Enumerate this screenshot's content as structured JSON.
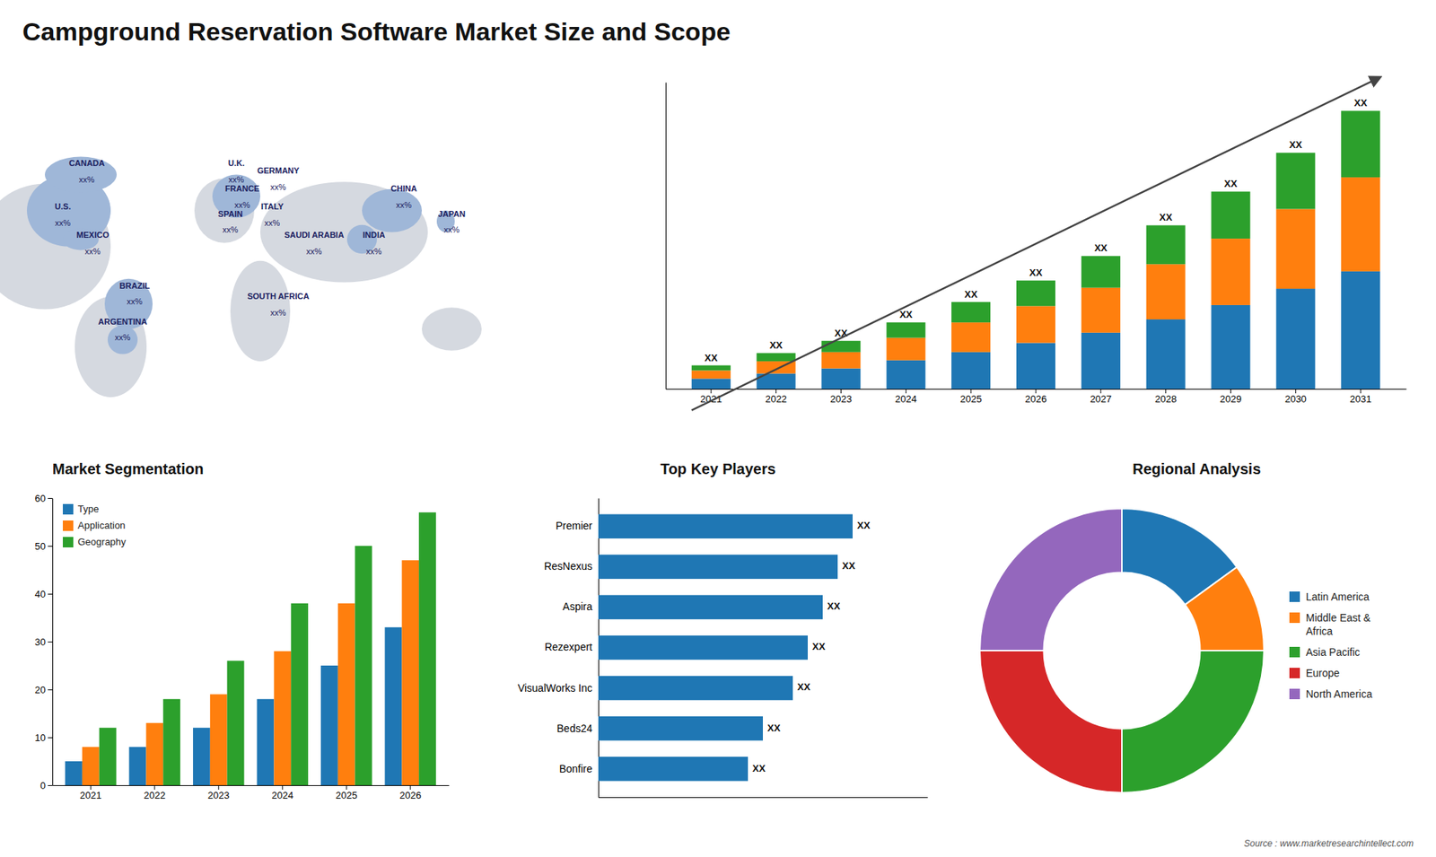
{
  "title": "Campground Reservation Software Market Size and Scope",
  "annotations": [
    "Source : www.marketresearchintellect.com"
  ],
  "chart_data": [
    {
      "type": "map",
      "annotations": [
        "CANADA",
        "xx%",
        "U.S.",
        "xx%",
        "MEXICO",
        "xx%",
        "BRAZIL",
        "xx%",
        "ARGENTINA",
        "xx%",
        "U.K.",
        "xx%",
        "FRANCE",
        "xx%",
        "SPAIN",
        "xx%",
        "GERMANY",
        "xx%",
        "ITALY",
        "xx%",
        "SAUDI ARABIA",
        "xx%",
        "SOUTH AFRICA",
        "xx%",
        "CHINA",
        "xx%",
        "INDIA",
        "xx%",
        "JAPAN",
        "xx%"
      ]
    },
    {
      "type": "bar",
      "stacked": true,
      "categories": [
        "2021",
        "2022",
        "2023",
        "2024",
        "2025",
        "2026",
        "2027",
        "2028",
        "2029",
        "2030",
        "2031"
      ],
      "series": [
        {
          "values": [
            1.0,
            1.5,
            2.0,
            2.8,
            3.6,
            4.5,
            5.5,
            6.8,
            8.2,
            9.8,
            11.5
          ]
        },
        {
          "values": [
            0.8,
            1.2,
            1.6,
            2.2,
            2.9,
            3.6,
            4.4,
            5.4,
            6.5,
            7.8,
            9.2
          ]
        },
        {
          "values": [
            0.5,
            0.8,
            1.1,
            1.5,
            2.0,
            2.5,
            3.1,
            3.8,
            4.6,
            5.5,
            6.5
          ]
        }
      ],
      "ylim": [
        0,
        30
      ],
      "tick_labels": "x",
      "grid": false,
      "annotations": [
        "XX",
        "XX",
        "XX",
        "XX",
        "XX",
        "XX",
        "XX",
        "XX",
        "XX",
        "XX",
        "XX"
      ]
    },
    {
      "type": "bar",
      "title": "Market Segmentation",
      "categories": [
        "2021",
        "2022",
        "2023",
        "2024",
        "2025",
        "2026"
      ],
      "series": [
        {
          "name": "Type",
          "values": [
            5,
            8,
            12,
            18,
            25,
            33
          ]
        },
        {
          "name": "Application",
          "values": [
            8,
            13,
            19,
            28,
            38,
            47
          ]
        },
        {
          "name": "Geography",
          "values": [
            12,
            18,
            26,
            38,
            50,
            57
          ]
        }
      ],
      "ylim": [
        0,
        60
      ],
      "yticks": [
        0,
        10,
        20,
        30,
        40,
        50,
        60
      ],
      "grid": false,
      "legend": "upper left"
    },
    {
      "type": "bar",
      "title": "Top Key Players",
      "orientation": "horizontal",
      "categories": [
        "Premier",
        "ResNexus",
        "Aspira",
        "Rezexpert",
        "VisualWorks Inc",
        "Beds24",
        "Bonfire"
      ],
      "values": [
        0.85,
        0.8,
        0.75,
        0.7,
        0.65,
        0.55,
        0.5
      ],
      "xlim": [
        0,
        1.1
      ],
      "tick_labels": "y",
      "annotations": [
        "XX",
        "XX",
        "XX",
        "XX",
        "XX",
        "XX",
        "XX"
      ]
    },
    {
      "type": "pie",
      "title": "Regional Analysis",
      "categories": [
        "Latin America",
        "Middle East &\nAfrica",
        "Asia Pacific",
        "Europe",
        "North America"
      ],
      "values": [
        15,
        10,
        25,
        25,
        25
      ],
      "legend": "right"
    }
  ]
}
